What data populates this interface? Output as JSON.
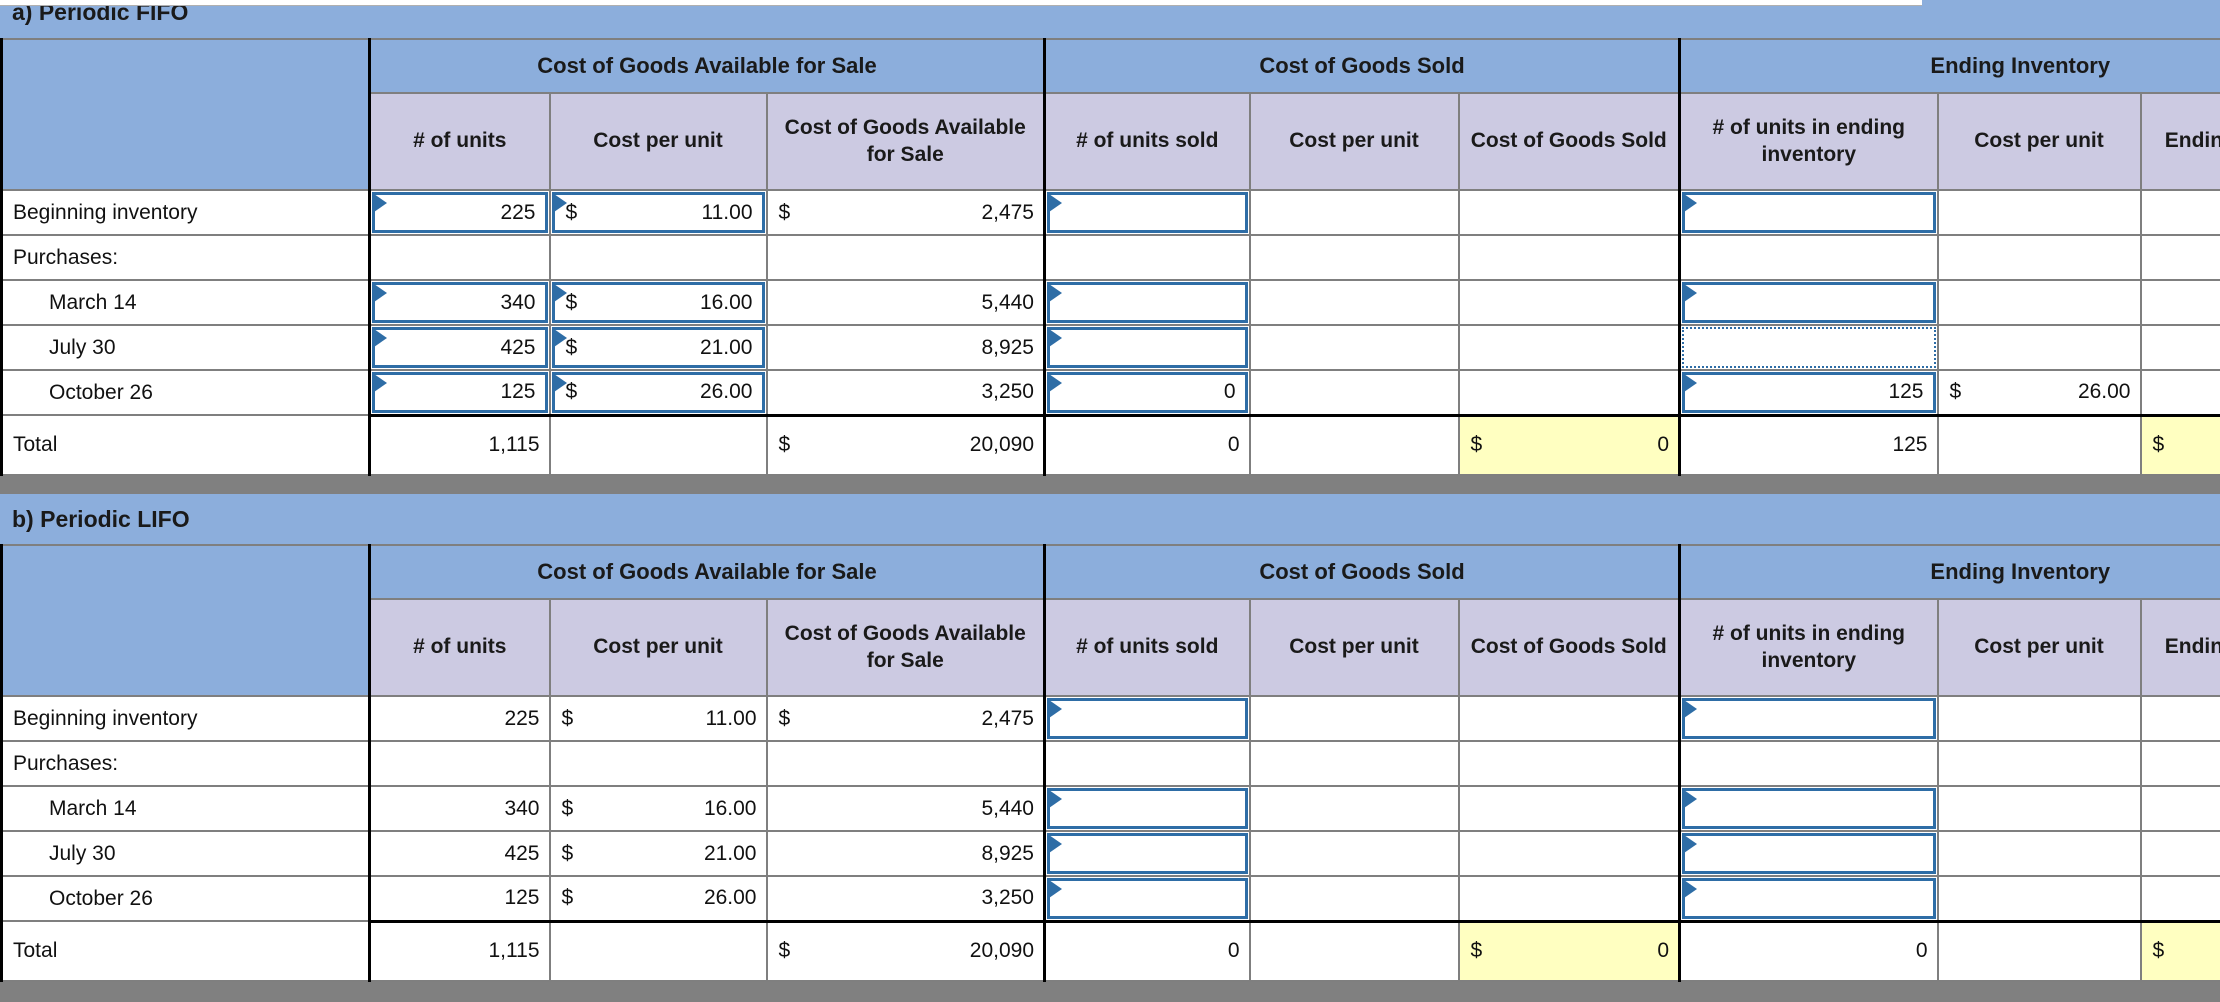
{
  "colors": {
    "header_blue": "#8CAEDC",
    "subheader_lavender": "#CCCAE2",
    "highlight_yellow": "#FFFFC1",
    "input_blue": "#2E6DA6",
    "divider_gray": "#808080",
    "grid_gray": "#7F7F7F"
  },
  "tables": [
    {
      "id": "periodic-fifo",
      "title": "a) Periodic FIFO",
      "groups": [
        "Cost of Goods Available for Sale",
        "Cost of Goods Sold",
        "Ending Inventory"
      ],
      "subheaders": [
        "# of units",
        "Cost per unit",
        "Cost of Goods Available for Sale",
        "# of units sold",
        "Cost per unit",
        "Cost of Goods Sold",
        "# of units in ending inventory",
        "Cost per unit",
        "Ending Inventory"
      ],
      "rows": [
        {
          "label": "Beginning inventory",
          "cells": [
            {
              "value": "225",
              "box": "solid"
            },
            {
              "currency": "$",
              "value": "11.00",
              "box": "solid"
            },
            {
              "currency": "$",
              "value": "2,475"
            },
            {
              "box": "solid"
            },
            {},
            {},
            {
              "box": "solid"
            },
            {},
            {}
          ]
        },
        {
          "label": "Purchases:",
          "cells": [
            {},
            {},
            {},
            {},
            {},
            {},
            {},
            {},
            {}
          ]
        },
        {
          "label": "March 14",
          "indent": true,
          "cells": [
            {
              "value": "340",
              "box": "solid"
            },
            {
              "currency": "$",
              "value": "16.00",
              "box": "solid"
            },
            {
              "value": "5,440"
            },
            {
              "box": "solid"
            },
            {},
            {},
            {
              "box": "solid"
            },
            {},
            {}
          ]
        },
        {
          "label": "July 30",
          "indent": true,
          "cells": [
            {
              "value": "425",
              "box": "solid"
            },
            {
              "currency": "$",
              "value": "21.00",
              "box": "solid"
            },
            {
              "value": "8,925"
            },
            {
              "box": "solid"
            },
            {},
            {},
            {
              "box": "dotted"
            },
            {},
            {}
          ]
        },
        {
          "label": "October 26",
          "indent": true,
          "cells": [
            {
              "value": "125",
              "box": "solid"
            },
            {
              "currency": "$",
              "value": "26.00",
              "box": "solid"
            },
            {
              "value": "3,250"
            },
            {
              "value": "0",
              "box": "solid"
            },
            {},
            {},
            {
              "value": "125",
              "box": "solid"
            },
            {
              "currency": "$",
              "value": "26.00"
            },
            {}
          ]
        },
        {
          "label": "Total",
          "total": true,
          "cells": [
            {
              "value": "1,115"
            },
            {},
            {
              "currency": "$",
              "value": "20,090"
            },
            {
              "value": "0"
            },
            {},
            {
              "currency": "$",
              "value": "0",
              "highlight": true
            },
            {
              "value": "125"
            },
            {},
            {
              "currency": "$",
              "highlight": true
            }
          ]
        }
      ]
    },
    {
      "id": "periodic-lifo",
      "title": "b) Periodic LIFO",
      "groups": [
        "Cost of Goods Available for Sale",
        "Cost of Goods Sold",
        "Ending Inventory"
      ],
      "subheaders": [
        "# of units",
        "Cost per unit",
        "Cost of Goods Available for Sale",
        "# of units sold",
        "Cost per unit",
        "Cost of Goods Sold",
        "# of units in ending inventory",
        "Cost per unit",
        "Ending Inventory"
      ],
      "rows": [
        {
          "label": "Beginning inventory",
          "cells": [
            {
              "value": "225"
            },
            {
              "currency": "$",
              "value": "11.00"
            },
            {
              "currency": "$",
              "value": "2,475"
            },
            {
              "box": "solid"
            },
            {},
            {},
            {
              "box": "solid"
            },
            {},
            {}
          ]
        },
        {
          "label": "Purchases:",
          "cells": [
            {},
            {},
            {},
            {},
            {},
            {},
            {},
            {},
            {}
          ]
        },
        {
          "label": "March 14",
          "indent": true,
          "cells": [
            {
              "value": "340"
            },
            {
              "currency": "$",
              "value": "16.00"
            },
            {
              "value": "5,440"
            },
            {
              "box": "solid"
            },
            {},
            {},
            {
              "box": "solid"
            },
            {},
            {}
          ]
        },
        {
          "label": "July 30",
          "indent": true,
          "cells": [
            {
              "value": "425"
            },
            {
              "currency": "$",
              "value": "21.00"
            },
            {
              "value": "8,925"
            },
            {
              "box": "solid"
            },
            {},
            {},
            {
              "box": "solid"
            },
            {},
            {}
          ]
        },
        {
          "label": "October 26",
          "indent": true,
          "cells": [
            {
              "value": "125"
            },
            {
              "currency": "$",
              "value": "26.00"
            },
            {
              "value": "3,250"
            },
            {
              "box": "solid"
            },
            {},
            {},
            {
              "box": "solid"
            },
            {},
            {}
          ]
        },
        {
          "label": "Total",
          "total": true,
          "cells": [
            {
              "value": "1,115"
            },
            {},
            {
              "currency": "$",
              "value": "20,090"
            },
            {
              "value": "0"
            },
            {},
            {
              "currency": "$",
              "value": "0",
              "highlight": true
            },
            {
              "value": "0"
            },
            {},
            {
              "currency": "$",
              "highlight": true
            }
          ]
        }
      ]
    }
  ]
}
